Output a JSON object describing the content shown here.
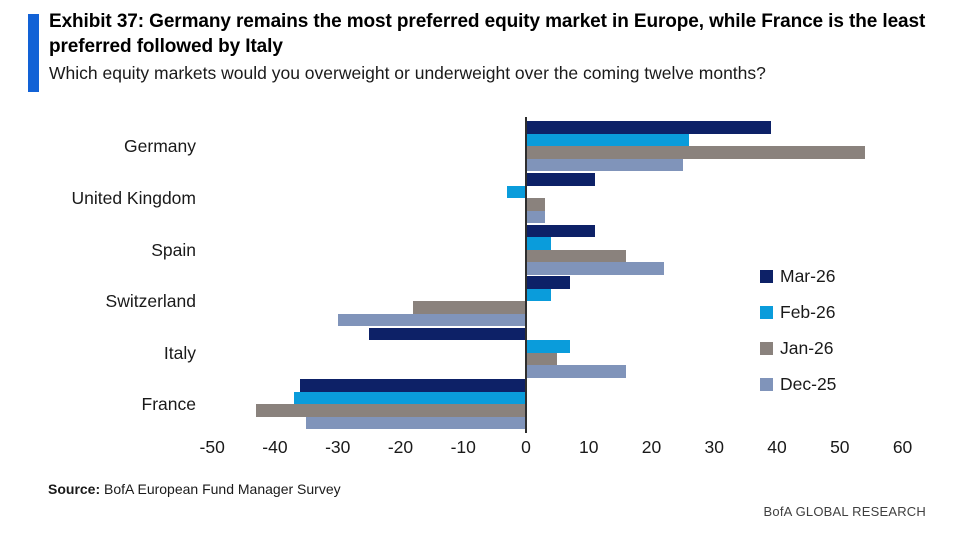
{
  "header": {
    "exhibit_title": "Exhibit 37: Germany remains the most preferred equity market in Europe, while France is the least preferred followed by Italy",
    "subtitle": "Which equity markets would you overweight or underweight over the coming twelve months?",
    "accent_color": "#1262d6"
  },
  "chart_data": {
    "type": "bar",
    "orientation": "horizontal",
    "title": "Which equity markets would you overweight or underweight over the coming twelve months?",
    "categories": [
      "Germany",
      "United Kingdom",
      "Spain",
      "Switzerland",
      "Italy",
      "France"
    ],
    "series": [
      {
        "name": "Mar-26",
        "color": "#0d2167",
        "values": [
          39,
          11,
          11,
          7,
          -25,
          -36
        ]
      },
      {
        "name": "Feb-26",
        "color": "#0a9cdb",
        "values": [
          26,
          -3,
          4,
          4,
          7,
          -37
        ]
      },
      {
        "name": "Jan-26",
        "color": "#8a827d",
        "values": [
          54,
          3,
          16,
          -18,
          5,
          -43
        ]
      },
      {
        "name": "Dec-25",
        "color": "#8094ba",
        "values": [
          25,
          3,
          22,
          -30,
          16,
          -35
        ]
      }
    ],
    "xlim": [
      -55,
      65
    ],
    "ticks": [
      -50,
      -40,
      -30,
      -20,
      -10,
      0,
      10,
      20,
      30,
      40,
      50,
      60
    ],
    "grid": false,
    "legend_position": "right-middle",
    "zero_line_color": "#2e2e2e"
  },
  "footer": {
    "source_label": "Source:",
    "source_text": " BofA European Fund Manager Survey",
    "brand": "BofA GLOBAL RESEARCH"
  }
}
